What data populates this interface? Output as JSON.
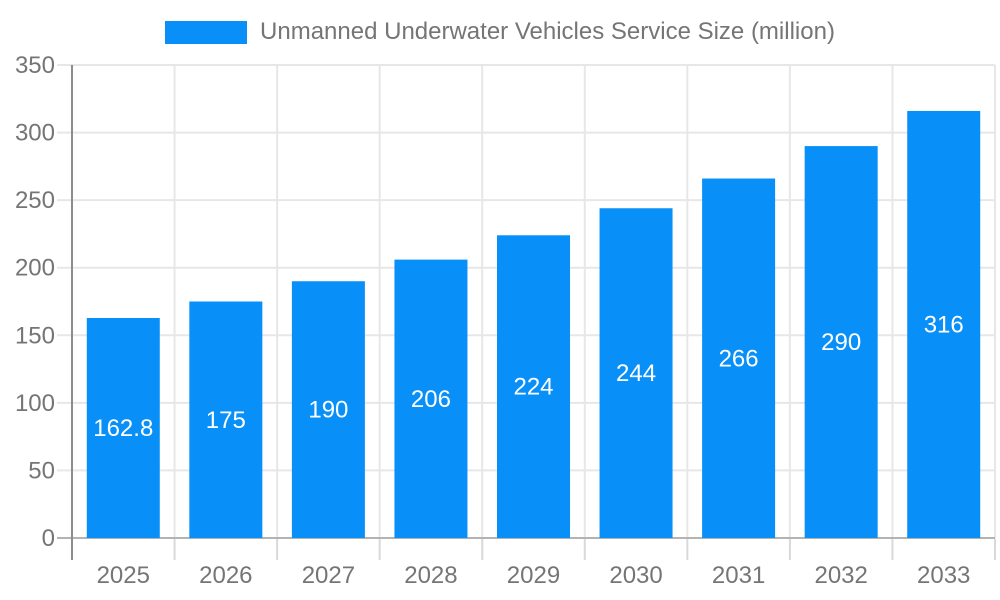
{
  "chart_data": {
    "type": "bar",
    "title": "Unmanned Underwater Vehicles Service Size (million)",
    "categories": [
      "2025",
      "2026",
      "2027",
      "2028",
      "2029",
      "2030",
      "2031",
      "2032",
      "2033"
    ],
    "values": [
      162.8,
      175,
      190,
      206,
      224,
      244,
      266,
      290,
      316
    ],
    "value_labels": [
      "162.8",
      "175",
      "190",
      "206",
      "224",
      "244",
      "266",
      "290",
      "316"
    ],
    "xlabel": "",
    "ylabel": "",
    "ylim": [
      0,
      350
    ],
    "yticks": [
      0,
      50,
      100,
      150,
      200,
      250,
      300,
      350
    ],
    "grid": true,
    "legend_position": "top",
    "colors": {
      "bar": "#0890F8",
      "bar_value_text": "#ffffff",
      "axis_text": "#757575",
      "gridline": "#e7e7e7",
      "x_axis_line": "#b3b3b3",
      "y_axis_line": "#8c8c8c",
      "minor_tick": "#d9d9d9"
    }
  }
}
